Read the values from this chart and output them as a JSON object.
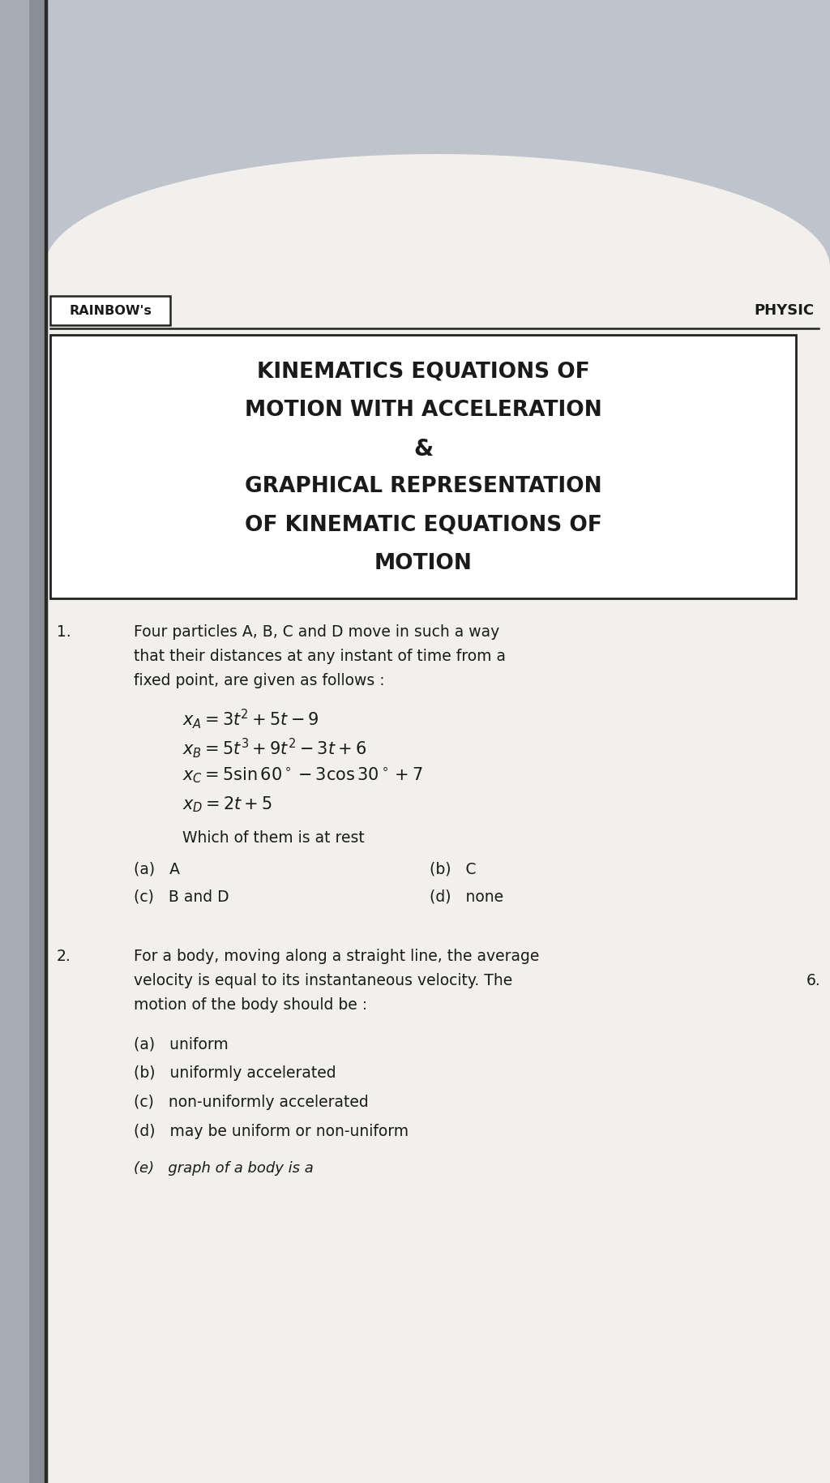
{
  "bg_color": "#bfc3cb",
  "page_color": "#f2f0ed",
  "spine_dark": "#8a8e96",
  "spine_mid": "#a8acb4",
  "text_color": "#1a1a1a",
  "header_label": "RAINBOW's",
  "header_right": "PHYSIC",
  "title_lines": [
    "KINEMATICS EQUATIONS OF",
    "MOTION WITH ACCELERATION",
    "&",
    "GRAPHICAL REPRESENTATION",
    "OF KINEMATIC EQUATIONS OF",
    "MOTION"
  ],
  "q1_number": "1.",
  "q1_text_lines": [
    "Four particles A, B, C and D move in such a way",
    "that their distances at any instant of time from a",
    "fixed point, are given as follows :"
  ],
  "q1_sub": "Which of them is at rest",
  "q1_opts_left": [
    "(a)   A",
    "(c)   B and D"
  ],
  "q1_opts_right": [
    "(b)   C",
    "(d)   none"
  ],
  "q2_number": "2.",
  "q2_right_num": "6.",
  "q2_text_lines": [
    "For a body, moving along a straight line, the average",
    "velocity is equal to its instantaneous velocity. The",
    "motion of the body should be :"
  ],
  "q2_opts": [
    "(a)   uniform",
    "(b)   uniformly accelerated",
    "(c)   non-uniformly accelerated",
    "(d)   may be uniform or non-uniform"
  ],
  "q2_last_line": "(e)   graph of a body is a"
}
